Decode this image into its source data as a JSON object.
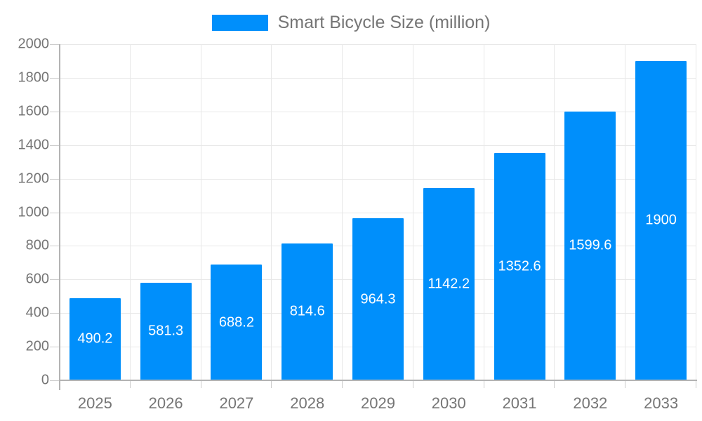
{
  "chart_data": {
    "type": "bar",
    "title": "Smart Bicycle Size (million)",
    "legend_position": "top",
    "grid": true,
    "categories": [
      "2025",
      "2026",
      "2027",
      "2028",
      "2029",
      "2030",
      "2031",
      "2032",
      "2033"
    ],
    "series": [
      {
        "name": "Smart Bicycle Size (million)",
        "values": [
          490.2,
          581.3,
          688.2,
          814.6,
          964.3,
          1142.2,
          1352.6,
          1599.6,
          1900
        ]
      }
    ],
    "value_labels": [
      "490.2",
      "581.3",
      "688.2",
      "814.6",
      "964.3",
      "1142.2",
      "1352.6",
      "1599.6",
      "1900"
    ],
    "xlabel": "",
    "ylabel": "",
    "ylim": [
      0,
      2000
    ],
    "y_tick_step": 200,
    "y_ticks": [
      0,
      200,
      400,
      600,
      800,
      1000,
      1200,
      1400,
      1600,
      1800,
      2000
    ],
    "y_tick_labels": [
      "0",
      "200",
      "400",
      "600",
      "800",
      "1000",
      "1200",
      "1400",
      "1600",
      "1800",
      "2000"
    ],
    "colors": {
      "bar": "#008FFB",
      "grid": "#e8e8e8",
      "axis": "#b3b3b3",
      "tick": "#cccccc",
      "axis_label": "#757575",
      "value_label": "#ffffff",
      "background": "#ffffff"
    }
  }
}
